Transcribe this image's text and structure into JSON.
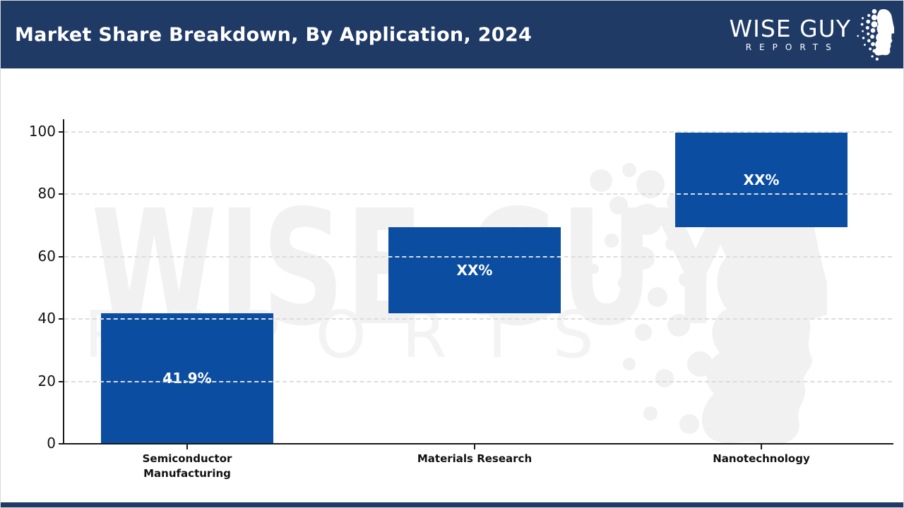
{
  "header": {
    "title": "Market Share Breakdown, By Application, 2024",
    "logo": {
      "line1": "WISE GUY",
      "line2": "REPORTS"
    },
    "bg_color": "#203a66"
  },
  "watermark": {
    "line1": "WISE GUY",
    "line2": "REPORTS"
  },
  "footer": {
    "bg_color": "#203a66"
  },
  "chart_data": {
    "type": "bar",
    "variant": "floating-stacked-breakdown",
    "title": "Market Share Breakdown, By Application, 2024",
    "categories": [
      "Semiconductor\nManufacturing",
      "Materials Research",
      "Nanotechnology"
    ],
    "bars": [
      {
        "category": "Semiconductor Manufacturing",
        "start": 0,
        "end": 41.9,
        "label": "41.9%"
      },
      {
        "category": "Materials Research",
        "start": 41.9,
        "end": 69.4,
        "label": "XX%"
      },
      {
        "category": "Nanotechnology",
        "start": 69.4,
        "end": 99.8,
        "label": "XX%"
      }
    ],
    "xlabel": "",
    "ylabel": "",
    "ylim": [
      0,
      100
    ],
    "yticks": [
      0,
      20,
      40,
      60,
      80,
      100
    ],
    "grid": "horizontal-dashed-above-bars",
    "legend": "none",
    "bar_color": "#0b4da1",
    "bar_label_color": "#ffffff",
    "axis_color": "#1a1a1a",
    "gridline_color": "#dcdcdc"
  }
}
